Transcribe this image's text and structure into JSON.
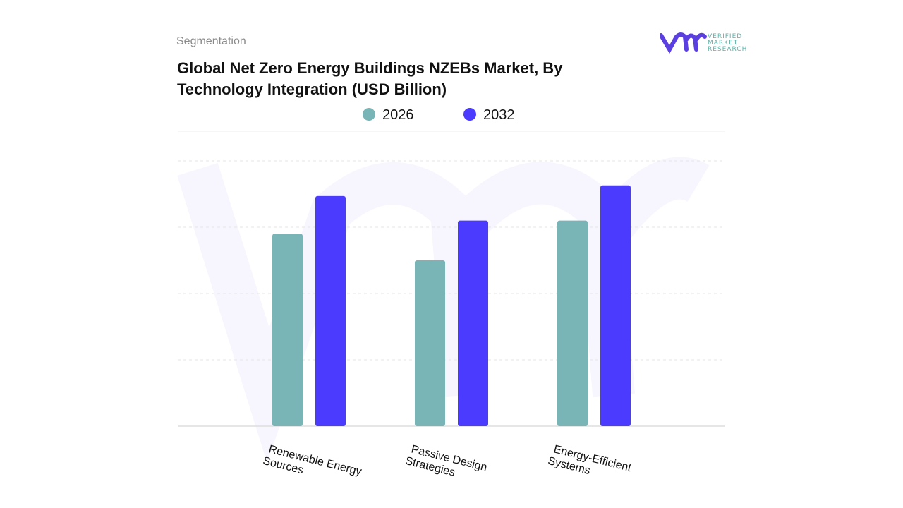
{
  "header": {
    "segment_label": "Segmentation",
    "title": "Global Net Zero Energy Buildings NZEBs Market, By Technology Integration (USD Billion)",
    "logo_text": [
      "VERIFIED",
      "MARKET",
      "RESEARCH"
    ]
  },
  "chart_data": {
    "type": "bar",
    "title": "Global Net Zero Energy Buildings NZEBs Market, By Technology Integration (USD Billion)",
    "categories": [
      [
        "Renewable  Energy",
        "Sources"
      ],
      [
        "Passive Design",
        "Strategies"
      ],
      [
        "Energy-Efficient",
        "Systems"
      ]
    ],
    "series": [
      {
        "name": "2026",
        "color": "#79b4b7",
        "values": [
          2.9,
          2.5,
          3.1
        ]
      },
      {
        "name": "2032",
        "color": "#4b3bff",
        "values": [
          3.47,
          3.1,
          3.63
        ]
      }
    ],
    "ylim": [
      0,
      4.0
    ],
    "grid": true,
    "y_tick_labels_shown": false,
    "legend": "top-center",
    "xlabel": "",
    "ylabel": ""
  }
}
